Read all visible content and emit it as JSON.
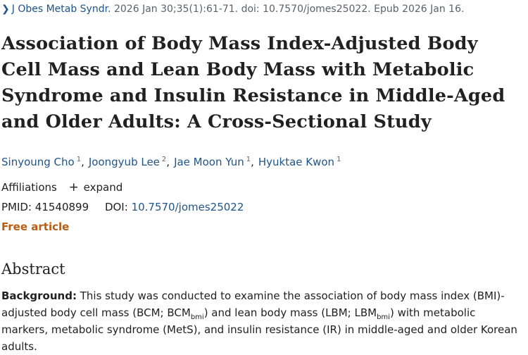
{
  "citation": {
    "journal": "J Obes Metab Syndr.",
    "details": "2026 Jan 30;35(1):61-71. doi: 10.7570/jomes25022. Epub 2026 Jan 16."
  },
  "title": "Association of Body Mass Index-Adjusted Body Cell Mass and Lean Body Mass with Metabolic Syndrome and Insulin Resistance in Middle-Aged and Older Adults: A Cross-Sectional Study",
  "authors": [
    {
      "name": "Sinyoung Cho",
      "aff": "1"
    },
    {
      "name": "Joongyub Lee",
      "aff": "2"
    },
    {
      "name": "Jae Moon Yun",
      "aff": "1"
    },
    {
      "name": "Hyuktae Kwon",
      "aff": "1"
    }
  ],
  "affiliations": {
    "label": "Affiliations",
    "expand": "expand"
  },
  "identifiers": {
    "pmid_label": "PMID:",
    "pmid": "41540899",
    "doi_label": "DOI:",
    "doi": "10.7570/jomes25022"
  },
  "access": "Free article",
  "abstract": {
    "heading": "Abstract",
    "label": "Background:",
    "t1": " This study was conducted to examine the association of body mass index (BMI)-adjusted body cell mass (BCM; BCM",
    "sub1": "bmi",
    "t2": ") and lean body mass (LBM; LBM",
    "sub2": "bmi",
    "t3": ") with metabolic markers, metabolic syndrome (MetS), and insulin resistance (IR) in middle-aged and older Korean adults."
  }
}
